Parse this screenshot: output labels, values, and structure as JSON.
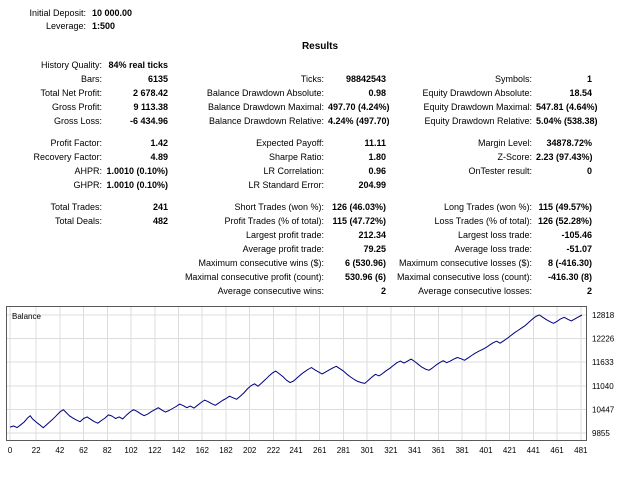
{
  "header": {
    "initial_deposit_label": "Initial Deposit:",
    "initial_deposit_value": "10 000.00",
    "leverage_label": "Leverage:",
    "leverage_value": "1:500",
    "results_title": "Results"
  },
  "stats": {
    "sections": [
      {
        "rows": [
          [
            {
              "l": "History Quality:",
              "v": "84% real ticks"
            },
            null,
            null
          ],
          [
            {
              "l": "Bars:",
              "v": "6135"
            },
            {
              "l": "Ticks:",
              "v": "98842543"
            },
            {
              "l": "Symbols:",
              "v": "1"
            }
          ],
          [
            {
              "l": "Total Net Profit:",
              "v": "2 678.42"
            },
            {
              "l": "Balance Drawdown Absolute:",
              "v": "0.98"
            },
            {
              "l": "Equity Drawdown Absolute:",
              "v": "18.54"
            }
          ],
          [
            {
              "l": "Gross Profit:",
              "v": "9 113.38"
            },
            {
              "l": "Balance Drawdown Maximal:",
              "v": "497.70 (4.24%)"
            },
            {
              "l": "Equity Drawdown Maximal:",
              "v": "547.81 (4.64%)"
            }
          ],
          [
            {
              "l": "Gross Loss:",
              "v": "-6 434.96"
            },
            {
              "l": "Balance Drawdown Relative:",
              "v": "4.24% (497.70)"
            },
            {
              "l": "Equity Drawdown Relative:",
              "v": "5.04% (538.38)"
            }
          ]
        ]
      },
      {
        "rows": [
          [
            {
              "l": "Profit Factor:",
              "v": "1.42"
            },
            {
              "l": "Expected Payoff:",
              "v": "11.11"
            },
            {
              "l": "Margin Level:",
              "v": "34878.72%"
            }
          ],
          [
            {
              "l": "Recovery Factor:",
              "v": "4.89"
            },
            {
              "l": "Sharpe Ratio:",
              "v": "1.80"
            },
            {
              "l": "Z-Score:",
              "v": "2.23 (97.43%)"
            }
          ],
          [
            {
              "l": "AHPR:",
              "v": "1.0010 (0.10%)"
            },
            {
              "l": "LR Correlation:",
              "v": "0.96"
            },
            {
              "l": "OnTester result:",
              "v": "0"
            }
          ],
          [
            {
              "l": "GHPR:",
              "v": "1.0010 (0.10%)"
            },
            {
              "l": "LR Standard Error:",
              "v": "204.99"
            },
            null
          ]
        ]
      },
      {
        "rows": [
          [
            {
              "l": "Total Trades:",
              "v": "241"
            },
            {
              "l": "Short Trades (won %):",
              "v": "126 (46.03%)"
            },
            {
              "l": "Long Trades (won %):",
              "v": "115 (49.57%)"
            }
          ],
          [
            {
              "l": "Total Deals:",
              "v": "482"
            },
            {
              "l": "Profit Trades (% of total):",
              "v": "115 (47.72%)"
            },
            {
              "l": "Loss Trades (% of total):",
              "v": "126 (52.28%)"
            }
          ],
          [
            null,
            {
              "l": "Largest profit trade:",
              "v": "212.34"
            },
            {
              "l": "Largest loss trade:",
              "v": "-105.46"
            }
          ],
          [
            null,
            {
              "l": "Average profit trade:",
              "v": "79.25"
            },
            {
              "l": "Average loss trade:",
              "v": "-51.07"
            }
          ],
          [
            null,
            {
              "l": "Maximum consecutive wins ($):",
              "v": "6 (530.96)"
            },
            {
              "l": "Maximum consecutive losses ($):",
              "v": "8 (-416.30)"
            }
          ],
          [
            null,
            {
              "l": "Maximal consecutive profit (count):",
              "v": "530.96 (6)"
            },
            {
              "l": "Maximal consecutive loss (count):",
              "v": "-416.30 (8)"
            }
          ],
          [
            null,
            {
              "l": "Average consecutive wins:",
              "v": "2"
            },
            {
              "l": "Average consecutive losses:",
              "v": "2"
            }
          ]
        ]
      }
    ]
  },
  "chart_data": {
    "type": "line",
    "title": "Balance",
    "legend": [
      "Balance"
    ],
    "xlim": [
      0,
      482
    ],
    "ylim": [
      9855,
      12818
    ],
    "x_ticks": [
      0,
      22,
      42,
      62,
      82,
      102,
      122,
      142,
      162,
      182,
      202,
      222,
      241,
      261,
      281,
      301,
      321,
      341,
      361,
      381,
      401,
      421,
      441,
      461,
      481
    ],
    "y_ticks": [
      9855,
      10447,
      11040,
      11633,
      12226,
      12818
    ],
    "line_color": "#000080",
    "grid_color": "#dcdcdc",
    "border_color": "#5a5a5a",
    "grid": "on",
    "points": [
      [
        0,
        10002
      ],
      [
        3,
        10030
      ],
      [
        6,
        9990
      ],
      [
        9,
        10060
      ],
      [
        12,
        10130
      ],
      [
        15,
        10240
      ],
      [
        17,
        10290
      ],
      [
        19,
        10210
      ],
      [
        22,
        10130
      ],
      [
        25,
        10060
      ],
      [
        28,
        9985
      ],
      [
        30,
        10040
      ],
      [
        33,
        10120
      ],
      [
        36,
        10200
      ],
      [
        39,
        10290
      ],
      [
        42,
        10380
      ],
      [
        45,
        10440
      ],
      [
        47,
        10380
      ],
      [
        50,
        10290
      ],
      [
        53,
        10230
      ],
      [
        56,
        10180
      ],
      [
        59,
        10140
      ],
      [
        62,
        10220
      ],
      [
        65,
        10260
      ],
      [
        68,
        10200
      ],
      [
        71,
        10140
      ],
      [
        74,
        10100
      ],
      [
        77,
        10170
      ],
      [
        80,
        10230
      ],
      [
        83,
        10310
      ],
      [
        86,
        10280
      ],
      [
        89,
        10220
      ],
      [
        92,
        10260
      ],
      [
        95,
        10210
      ],
      [
        98,
        10300
      ],
      [
        101,
        10380
      ],
      [
        104,
        10440
      ],
      [
        107,
        10400
      ],
      [
        110,
        10340
      ],
      [
        113,
        10290
      ],
      [
        116,
        10330
      ],
      [
        119,
        10390
      ],
      [
        122,
        10440
      ],
      [
        125,
        10490
      ],
      [
        128,
        10430
      ],
      [
        131,
        10380
      ],
      [
        134,
        10420
      ],
      [
        137,
        10470
      ],
      [
        140,
        10520
      ],
      [
        143,
        10580
      ],
      [
        146,
        10540
      ],
      [
        149,
        10490
      ],
      [
        152,
        10530
      ],
      [
        155,
        10480
      ],
      [
        158,
        10550
      ],
      [
        161,
        10620
      ],
      [
        164,
        10680
      ],
      [
        167,
        10640
      ],
      [
        170,
        10590
      ],
      [
        173,
        10550
      ],
      [
        176,
        10610
      ],
      [
        179,
        10670
      ],
      [
        182,
        10720
      ],
      [
        185,
        10780
      ],
      [
        188,
        10740
      ],
      [
        191,
        10700
      ],
      [
        194,
        10780
      ],
      [
        197,
        10860
      ],
      [
        200,
        10960
      ],
      [
        203,
        11040
      ],
      [
        206,
        11090
      ],
      [
        209,
        11030
      ],
      [
        212,
        11110
      ],
      [
        215,
        11190
      ],
      [
        218,
        11280
      ],
      [
        221,
        11360
      ],
      [
        224,
        11410
      ],
      [
        227,
        11340
      ],
      [
        230,
        11270
      ],
      [
        233,
        11180
      ],
      [
        236,
        11120
      ],
      [
        239,
        11160
      ],
      [
        242,
        11240
      ],
      [
        245,
        11320
      ],
      [
        248,
        11390
      ],
      [
        251,
        11450
      ],
      [
        254,
        11500
      ],
      [
        257,
        11440
      ],
      [
        260,
        11390
      ],
      [
        263,
        11340
      ],
      [
        266,
        11390
      ],
      [
        269,
        11440
      ],
      [
        272,
        11490
      ],
      [
        275,
        11530
      ],
      [
        278,
        11470
      ],
      [
        281,
        11410
      ],
      [
        284,
        11330
      ],
      [
        287,
        11260
      ],
      [
        290,
        11200
      ],
      [
        293,
        11150
      ],
      [
        296,
        11120
      ],
      [
        299,
        11100
      ],
      [
        302,
        11180
      ],
      [
        305,
        11260
      ],
      [
        308,
        11330
      ],
      [
        311,
        11290
      ],
      [
        314,
        11350
      ],
      [
        317,
        11420
      ],
      [
        320,
        11480
      ],
      [
        323,
        11550
      ],
      [
        326,
        11620
      ],
      [
        329,
        11660
      ],
      [
        332,
        11610
      ],
      [
        335,
        11660
      ],
      [
        338,
        11710
      ],
      [
        341,
        11650
      ],
      [
        344,
        11580
      ],
      [
        347,
        11510
      ],
      [
        350,
        11460
      ],
      [
        353,
        11430
      ],
      [
        356,
        11490
      ],
      [
        359,
        11560
      ],
      [
        362,
        11620
      ],
      [
        365,
        11670
      ],
      [
        368,
        11620
      ],
      [
        371,
        11660
      ],
      [
        374,
        11710
      ],
      [
        377,
        11750
      ],
      [
        380,
        11720
      ],
      [
        383,
        11680
      ],
      [
        386,
        11740
      ],
      [
        389,
        11800
      ],
      [
        392,
        11860
      ],
      [
        395,
        11910
      ],
      [
        398,
        11950
      ],
      [
        401,
        12000
      ],
      [
        404,
        12060
      ],
      [
        407,
        12120
      ],
      [
        410,
        12160
      ],
      [
        413,
        12110
      ],
      [
        416,
        12170
      ],
      [
        419,
        12230
      ],
      [
        422,
        12300
      ],
      [
        425,
        12370
      ],
      [
        428,
        12430
      ],
      [
        431,
        12490
      ],
      [
        434,
        12550
      ],
      [
        437,
        12630
      ],
      [
        440,
        12710
      ],
      [
        443,
        12780
      ],
      [
        446,
        12820
      ],
      [
        449,
        12760
      ],
      [
        452,
        12700
      ],
      [
        455,
        12650
      ],
      [
        458,
        12610
      ],
      [
        461,
        12660
      ],
      [
        464,
        12720
      ],
      [
        467,
        12760
      ],
      [
        470,
        12710
      ],
      [
        473,
        12670
      ],
      [
        476,
        12720
      ],
      [
        479,
        12770
      ],
      [
        482,
        12818
      ]
    ]
  }
}
